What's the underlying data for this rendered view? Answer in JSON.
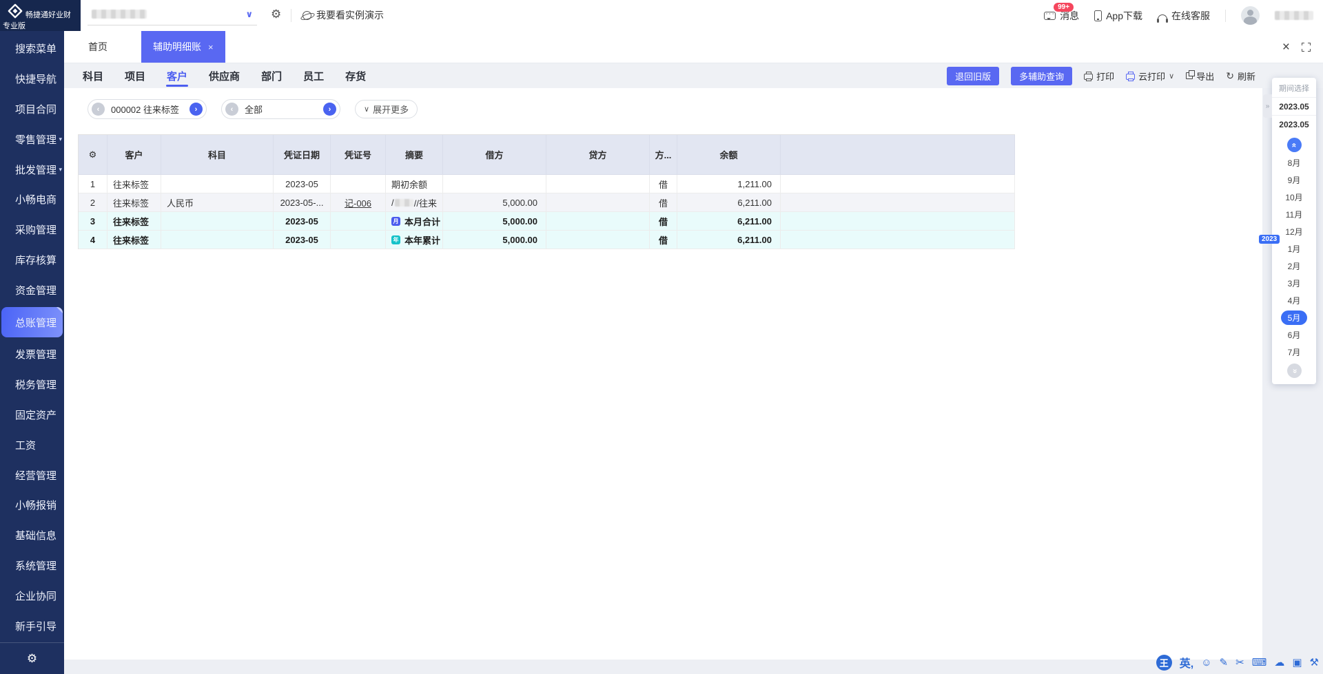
{
  "topbar": {
    "logo_title": "畅捷通好业财",
    "logo_subtitle": "专业版",
    "demo_label": "我要看实例演示",
    "message_label": "消息",
    "message_badge": "99+",
    "app_label": "App下载",
    "support_label": "在线客服"
  },
  "tabs": {
    "home": "首页",
    "active": "辅助明细账",
    "close": "×"
  },
  "subtabs": {
    "active_index": 2,
    "items": [
      {
        "key": "subject",
        "label": "科目"
      },
      {
        "key": "project",
        "label": "项目"
      },
      {
        "key": "customer",
        "label": "客户"
      },
      {
        "key": "supplier",
        "label": "供应商"
      },
      {
        "key": "department",
        "label": "部门"
      },
      {
        "key": "employee",
        "label": "员工"
      },
      {
        "key": "inventory",
        "label": "存货"
      }
    ]
  },
  "toolbar": {
    "back_old": "退回旧版",
    "multi_query": "多辅助查询",
    "print": "打印",
    "cloud_print": "云打印",
    "export": "导出",
    "refresh": "刷新"
  },
  "filters": {
    "customer_value": "000002 往来标签",
    "scope_value": "全部",
    "expand_label": "展开更多"
  },
  "sidebar": {
    "items": [
      {
        "key": "search-menu",
        "label": "搜索菜单"
      },
      {
        "key": "quick-nav",
        "label": "快捷导航"
      },
      {
        "key": "project-contract",
        "label": "项目合同"
      },
      {
        "key": "retail-mgmt",
        "label": "零售管理",
        "arrow": true
      },
      {
        "key": "wholesale-mgmt",
        "label": "批发管理",
        "arrow": true
      },
      {
        "key": "xiaochang-ecommerce",
        "label": "小畅电商"
      },
      {
        "key": "purchase-mgmt",
        "label": "采购管理"
      },
      {
        "key": "inventory-accounting",
        "label": "库存核算"
      },
      {
        "key": "fund-mgmt",
        "label": "资金管理"
      },
      {
        "key": "general-ledger",
        "label": "总账管理",
        "active": true
      },
      {
        "key": "invoice-mgmt",
        "label": "发票管理"
      },
      {
        "key": "tax-mgmt",
        "label": "税务管理"
      },
      {
        "key": "fixed-assets",
        "label": "固定资产"
      },
      {
        "key": "payroll",
        "label": "工资"
      },
      {
        "key": "operation-mgmt",
        "label": "经营管理"
      },
      {
        "key": "xiaochang-reimburse",
        "label": "小畅报销"
      },
      {
        "key": "basic-info",
        "label": "基础信息"
      },
      {
        "key": "system-mgmt",
        "label": "系统管理"
      },
      {
        "key": "enterprise-collab",
        "label": "企业协同"
      },
      {
        "key": "beginner-guide",
        "label": "新手引导"
      }
    ]
  },
  "table": {
    "columns": [
      "客户",
      "科目",
      "凭证日期",
      "凭证号",
      "摘要",
      "借方",
      "贷方",
      "方...",
      "余额"
    ],
    "rows": [
      {
        "num": "1",
        "customer": "往来标签",
        "subject": "",
        "date": "2023-05",
        "voucher": "",
        "summary": "期初余额",
        "debit": "",
        "credit": "",
        "direction": "借",
        "balance": "1,211.00",
        "style": "normal"
      },
      {
        "num": "2",
        "customer": "往来标签",
        "subject": "人民币",
        "date": "2023-05-...",
        "voucher": "记-006",
        "summary_prefix": "/",
        "summary_redacted": true,
        "summary_suffix": "//往来",
        "debit": "5,000.00",
        "credit": "",
        "direction": "借",
        "balance": "6,211.00",
        "style": "alt"
      },
      {
        "num": "3",
        "customer": "往来标签",
        "subject": "",
        "date": "2023-05",
        "voucher": "",
        "summary": "本月合计",
        "badge": "月",
        "debit": "5,000.00",
        "credit": "",
        "direction": "借",
        "balance": "6,211.00",
        "style": "summary"
      },
      {
        "num": "4",
        "customer": "往来标签",
        "subject": "",
        "date": "2023-05",
        "voucher": "",
        "summary": "本年累计",
        "badge": "年",
        "debit": "5,000.00",
        "credit": "",
        "direction": "借",
        "balance": "6,211.00",
        "style": "summary"
      }
    ]
  },
  "period_panel": {
    "title": "期间选择",
    "period_from": "2023.05",
    "period_to": "2023.05",
    "year_badge": "2023",
    "months": [
      "8月",
      "9月",
      "10月",
      "11月",
      "12月",
      "1月",
      "2月",
      "3月",
      "4月",
      "5月",
      "6月",
      "7月"
    ],
    "selected_month": "5月",
    "year_badge_month": "1月"
  },
  "ime": {
    "circle_label": "王",
    "lang_label": "英,",
    "icons": [
      {
        "name": "emoji-icon",
        "glyph": "☺"
      },
      {
        "name": "handwriting-icon",
        "glyph": "✎"
      },
      {
        "name": "screenshot-icon",
        "glyph": "✂"
      },
      {
        "name": "keyboard-icon",
        "glyph": "⌨"
      },
      {
        "name": "cloud-icon",
        "glyph": "☁"
      },
      {
        "name": "skin-icon",
        "glyph": "▣"
      },
      {
        "name": "toolbox-icon",
        "glyph": "⚒"
      }
    ]
  },
  "colors": {
    "accent": "#5968f2",
    "sidebar_bg": "#1e3060",
    "summary_row_bg": "#e9fbfb",
    "month_badge": "#4a5bee",
    "year_badge_color": "#16c2c9",
    "selected_month_bg": "#3a6ef5",
    "message_badge_bg": "#f5465d"
  }
}
